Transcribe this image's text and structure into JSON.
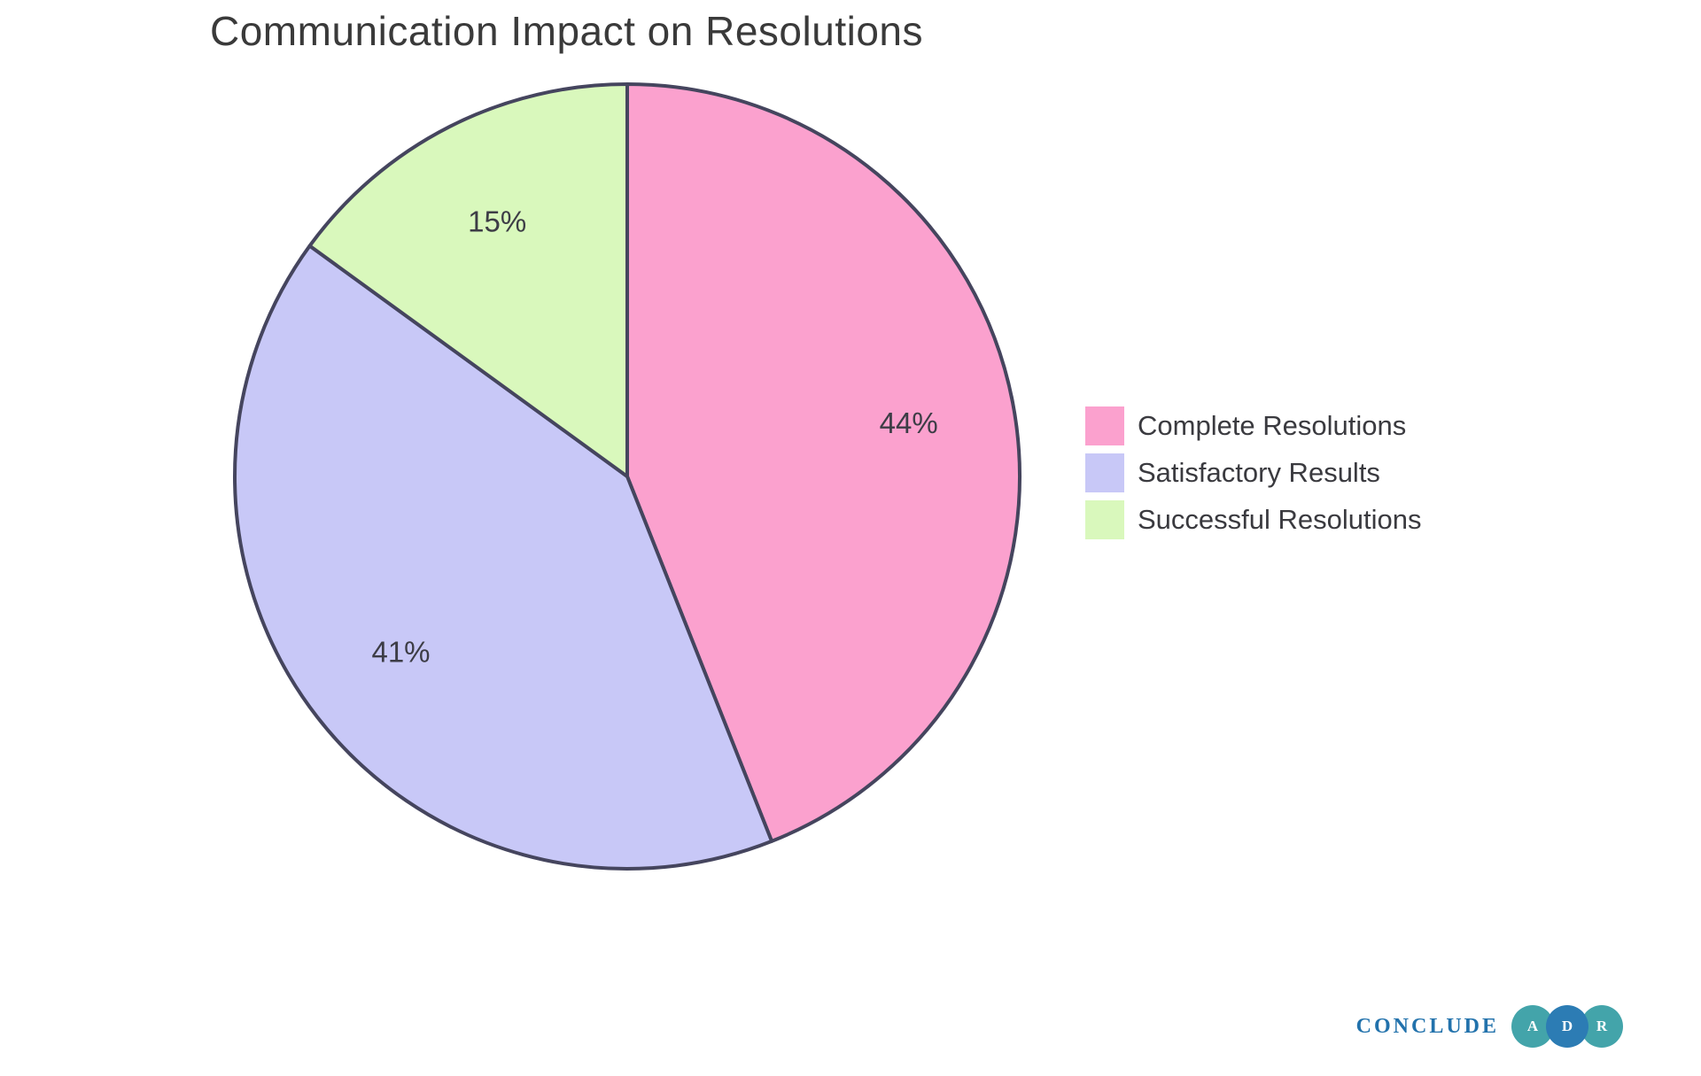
{
  "chart_data": {
    "type": "pie",
    "title": "Communication Impact on Resolutions",
    "slices": [
      {
        "label": "Complete Resolutions",
        "value": 44,
        "percent_label": "44%",
        "color": "#fba1ce"
      },
      {
        "label": "Satisfactory Results",
        "value": 41,
        "percent_label": "41%",
        "color": "#c8c8f7"
      },
      {
        "label": "Successful Resolutions",
        "value": 15,
        "percent_label": "15%",
        "color": "#d9f8bc"
      }
    ],
    "start_angle_deg": 0,
    "direction": "clockwise",
    "stroke_color": "#45455e",
    "label_color": "#3d3d46",
    "legend_position": "right",
    "grid": false
  },
  "branding": {
    "wordmark": "CONCLUDE",
    "wordmark_color": "#2272ac",
    "badges": [
      {
        "letter": "A",
        "color": "#43a4aa"
      },
      {
        "letter": "D",
        "color": "#2c7cb4"
      },
      {
        "letter": "R",
        "color": "#43a4aa"
      }
    ]
  }
}
